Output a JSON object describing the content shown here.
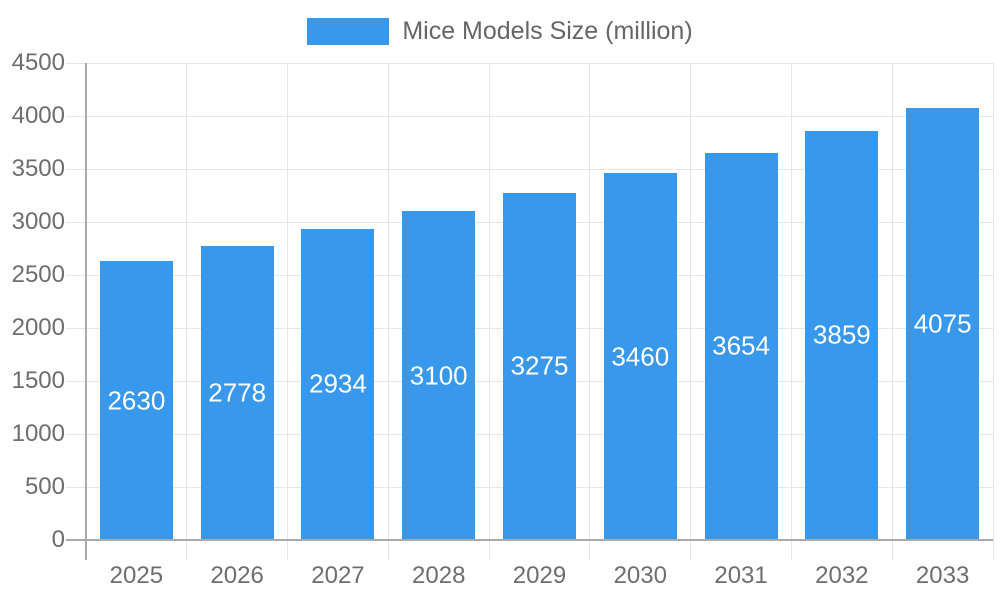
{
  "chart_data": {
    "type": "bar",
    "title": "",
    "categories": [
      "2025",
      "2026",
      "2027",
      "2028",
      "2029",
      "2030",
      "2031",
      "2032",
      "2033"
    ],
    "series": [
      {
        "name": "Mice Models Size (million)",
        "values": [
          2630,
          2778,
          2934,
          3100,
          3275,
          3460,
          3654,
          3859,
          4075
        ],
        "color": "#3898EC"
      }
    ],
    "xlabel": "",
    "ylabel": "",
    "ylim": [
      0,
      4500
    ],
    "yticks": [
      0,
      500,
      1000,
      1500,
      2000,
      2500,
      3000,
      3500,
      4000,
      4500
    ],
    "grid": true,
    "legend_position": "top",
    "value_label_position": "inside-center"
  },
  "colors": {
    "bar": "#3898EC",
    "grid_line": "#E6E6E6",
    "axis_line": "#AAAAAA",
    "tick_label": "#6E6E6E",
    "legend_label": "#666666",
    "value_label": "#FFFFFF",
    "background": "#FFFFFF"
  }
}
